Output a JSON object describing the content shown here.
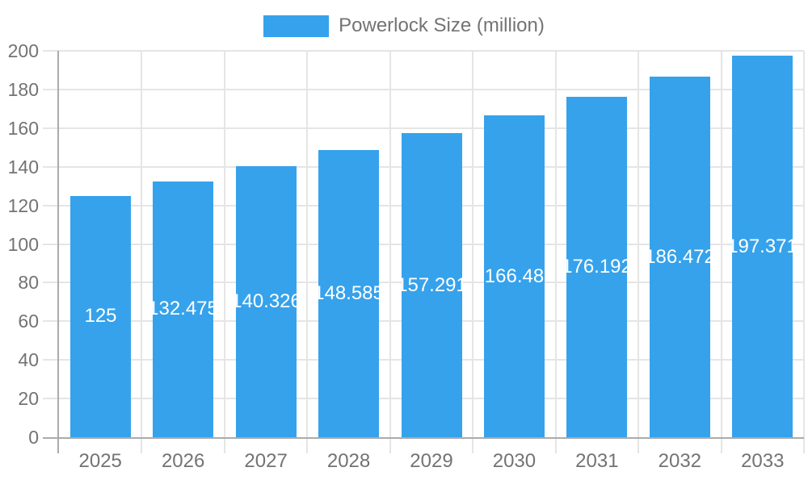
{
  "legend": {
    "label": "Powerlock Size (million)"
  },
  "colors": {
    "bar": "#36A2EB",
    "text": "#737373",
    "grid": "#e5e5e5",
    "axis": "#ababab",
    "value_label": "#ffffff",
    "background": "#ffffff"
  },
  "chart_data": {
    "type": "bar",
    "title": "Powerlock Size (million)",
    "categories": [
      "2025",
      "2026",
      "2027",
      "2028",
      "2029",
      "2030",
      "2031",
      "2032",
      "2033"
    ],
    "values": [
      125,
      132.475,
      140.326,
      148.585,
      157.291,
      166.48,
      176.192,
      186.472,
      197.371
    ],
    "value_labels": [
      "125",
      "132.475",
      "140.326",
      "148.585",
      "157.291",
      "166.48",
      "176.192",
      "186.472",
      "197.371"
    ],
    "series": [
      {
        "name": "Powerlock Size (million)",
        "values": [
          125,
          132.475,
          140.326,
          148.585,
          157.291,
          166.48,
          176.192,
          186.472,
          197.371
        ]
      }
    ],
    "xlabel": "",
    "ylabel": "",
    "ylim": [
      0,
      200
    ],
    "ytick_step": 20,
    "ytick_labels": [
      "0",
      "20",
      "40",
      "60",
      "80",
      "100",
      "120",
      "140",
      "160",
      "180",
      "200"
    ],
    "grid": true,
    "legend_position": "top"
  }
}
